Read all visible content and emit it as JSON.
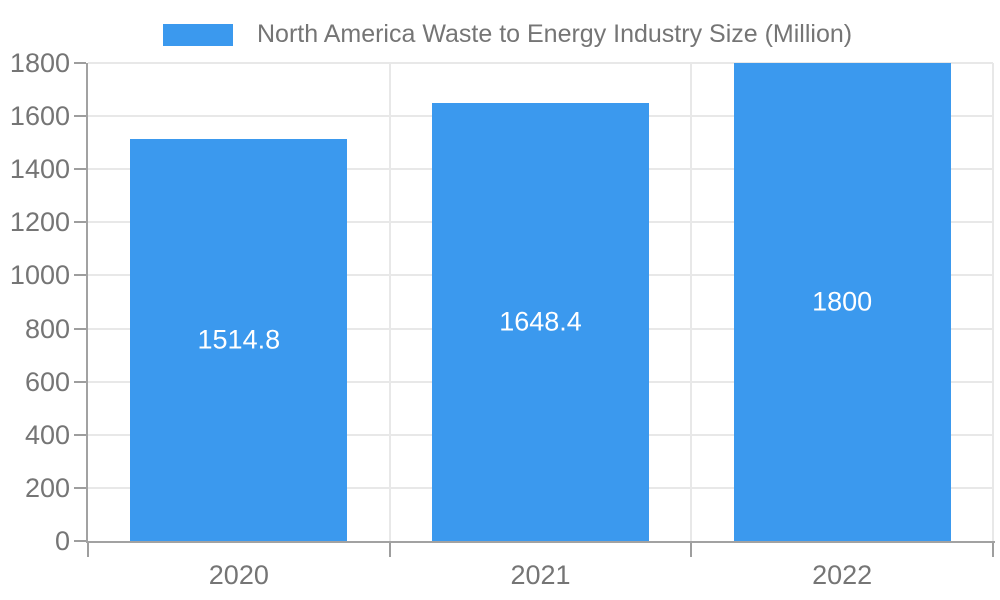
{
  "chart_data": {
    "type": "bar",
    "title": "North America Waste to Energy Industry Size (Million)",
    "categories": [
      "2020",
      "2021",
      "2022"
    ],
    "values": [
      1514.8,
      1648.4,
      1800
    ],
    "value_labels": [
      "1514.8",
      "1648.4",
      "1800"
    ],
    "yticks": [
      0,
      200,
      400,
      600,
      800,
      1000,
      1200,
      1400,
      1600,
      1800
    ],
    "ylim": [
      0,
      1800
    ],
    "xlabel": "",
    "ylabel": "",
    "grid": true,
    "legend_position": "top",
    "colors": {
      "bar": "#3b99ee",
      "bar_label_text": "#ffffff",
      "axis_text": "#757575",
      "axis_line": "#a2a2a2",
      "tick_line": "#9e9e9e",
      "gridline": "#e8e8e8",
      "background": "#ffffff"
    }
  }
}
